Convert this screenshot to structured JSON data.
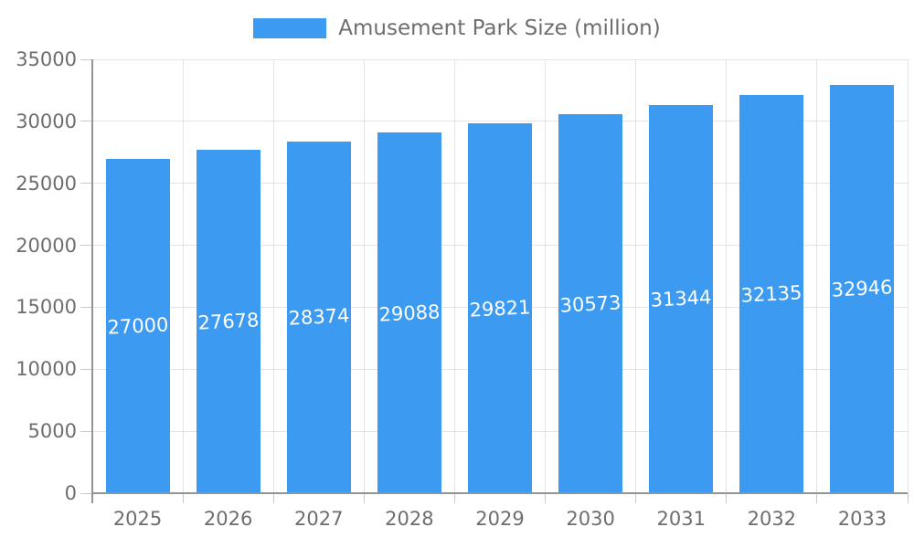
{
  "chart_data": {
    "type": "bar",
    "title": "Amusement Park Size (million)",
    "legend": [
      "Amusement Park Size (million)"
    ],
    "legend_position": "top",
    "categories": [
      "2025",
      "2026",
      "2027",
      "2028",
      "2029",
      "2030",
      "2031",
      "2032",
      "2033"
    ],
    "values": [
      27000,
      27678,
      28374,
      29088,
      29821,
      30573,
      31344,
      32135,
      32946
    ],
    "value_labels": [
      "27000",
      "27678",
      "28374",
      "29088",
      "29821",
      "30573",
      "31344",
      "32135",
      "32946"
    ],
    "xlabel": "",
    "ylabel": "",
    "ylim": [
      0,
      35000
    ],
    "yticks": [
      0,
      5000,
      10000,
      15000,
      20000,
      25000,
      30000,
      35000
    ],
    "ytick_labels": [
      "0",
      "5000",
      "10000",
      "15000",
      "20000",
      "25000",
      "30000",
      "35000"
    ],
    "grid": "on",
    "colors": {
      "bar": "#3C9AF1",
      "value_label": "#FFFFFF",
      "grid_line": "#E3E3E3",
      "axis_line": "#949494",
      "tick_mark": "#C9C9C9",
      "tick_label": "#6E6E6E",
      "legend_text": "#6E6E6E",
      "background": "#FFFFFF"
    }
  }
}
